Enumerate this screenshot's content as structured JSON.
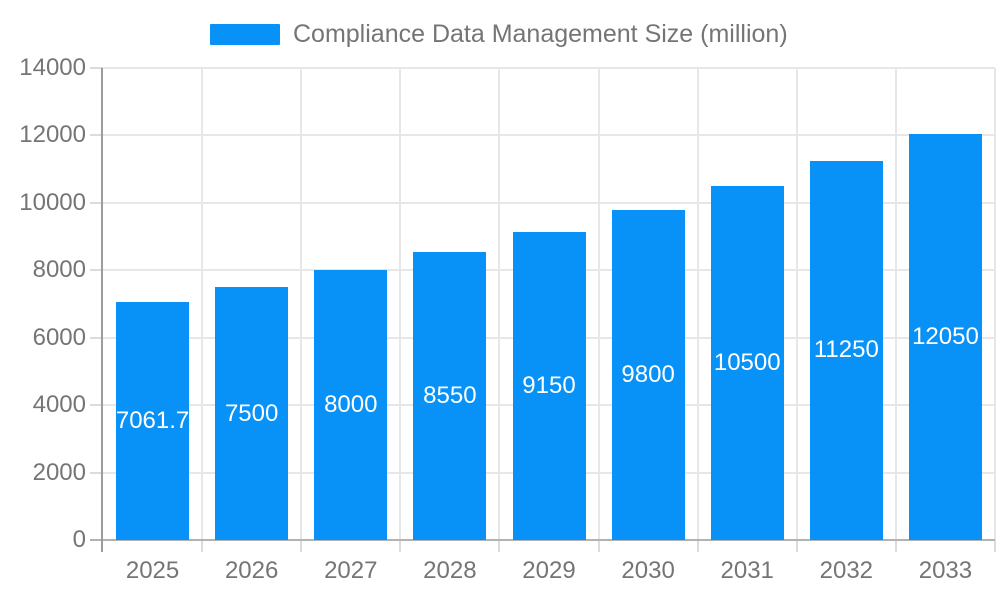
{
  "chart_data": {
    "type": "bar",
    "legend_label": "Compliance Data Management Size (million)",
    "legend_position": "top-center",
    "categories": [
      "2025",
      "2026",
      "2027",
      "2028",
      "2029",
      "2030",
      "2031",
      "2032",
      "2033"
    ],
    "values": [
      7061.7,
      7500,
      8000,
      8550,
      9150,
      9800,
      10500,
      11250,
      12050
    ],
    "bar_labels": [
      "7061.7",
      "7500",
      "8000",
      "8550",
      "9150",
      "9800",
      "10500",
      "11250",
      "12050"
    ],
    "ylim": [
      0,
      14000
    ],
    "yticks": [
      0,
      2000,
      4000,
      6000,
      8000,
      10000,
      12000,
      14000
    ],
    "ytick_labels": [
      "0",
      "2000",
      "4000",
      "6000",
      "8000",
      "10000",
      "12000",
      "14000"
    ],
    "grid": true,
    "bar_label_position": "inside-center",
    "colors": {
      "bar": "#0892f8",
      "grid": "#e7e7e7",
      "tick": "#dcdcdc",
      "y_axis": "#9c9c9c",
      "x_axis": "#b2b2b2",
      "text": "#757575",
      "bar_label": "#ffffff",
      "background": "#ffffff"
    }
  }
}
